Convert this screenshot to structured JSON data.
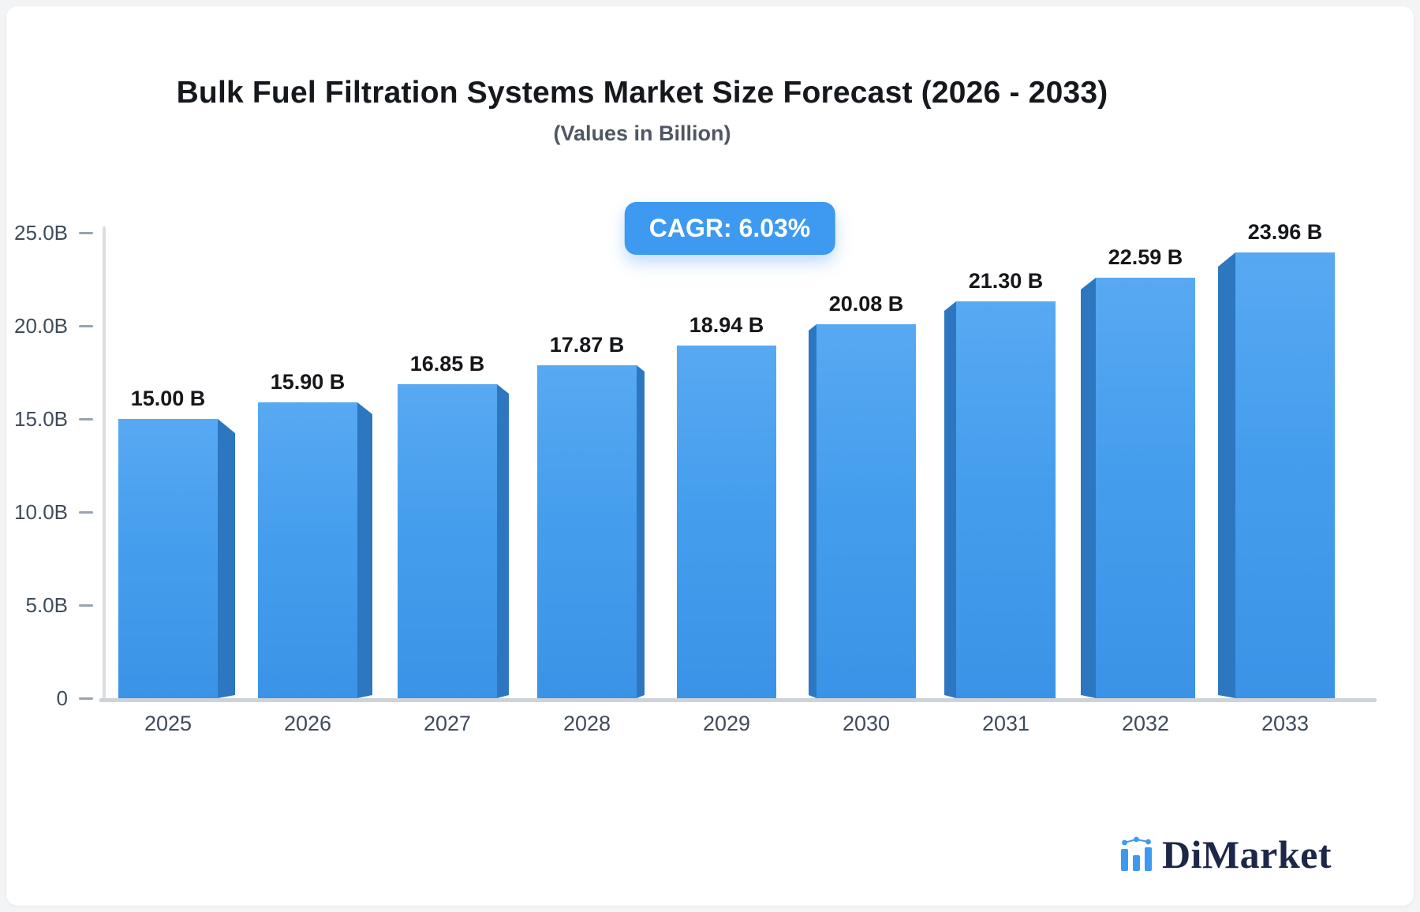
{
  "header": {
    "title": "Bulk Fuel Filtration Systems Market Size Forecast (2026 - 2033)",
    "subtitle": "(Values in Billion)",
    "cagr_label": "CAGR: 6.03%"
  },
  "chart_data": {
    "type": "bar",
    "title": "Bulk Fuel Filtration Systems Market Size Forecast (2026 - 2033)",
    "subtitle": "(Values in Billion)",
    "annotation": "CAGR: 6.03%",
    "categories": [
      "2025",
      "2026",
      "2027",
      "2028",
      "2029",
      "2030",
      "2031",
      "2032",
      "2033"
    ],
    "values": [
      15.0,
      15.9,
      16.85,
      17.87,
      18.94,
      20.08,
      21.3,
      22.59,
      23.96
    ],
    "value_labels": [
      "15.00 B",
      "15.90 B",
      "16.85 B",
      "17.87 B",
      "18.94 B",
      "20.08 B",
      "21.30 B",
      "22.59 B",
      "23.96 B"
    ],
    "unit": "Billion",
    "xlabel": "",
    "ylabel": "",
    "ylim": [
      0,
      25
    ],
    "y_ticks": [
      {
        "value": 0,
        "label": "0"
      },
      {
        "value": 5,
        "label": "5.0B"
      },
      {
        "value": 10,
        "label": "10.0B"
      },
      {
        "value": 15,
        "label": "15.0B"
      },
      {
        "value": 20,
        "label": "20.0B"
      },
      {
        "value": 25,
        "label": "25.0B"
      }
    ],
    "grid": false,
    "legend": "none",
    "colors": {
      "bar_face_top": "#58a9f2",
      "bar_face_bottom": "#3b93e7",
      "bar_side": "#2d77c0",
      "badge_background": "#3d9af0",
      "badge_text": "#ffffff",
      "axis_label": "#3f4b5b",
      "value_label": "#15171a",
      "axis_line": "#dadee3",
      "baseline": "#cdd3d9"
    }
  },
  "footer": {
    "brand": "DiMarket",
    "brand_color": "#1d2747",
    "brand_icon_color": "#3d9af0"
  }
}
